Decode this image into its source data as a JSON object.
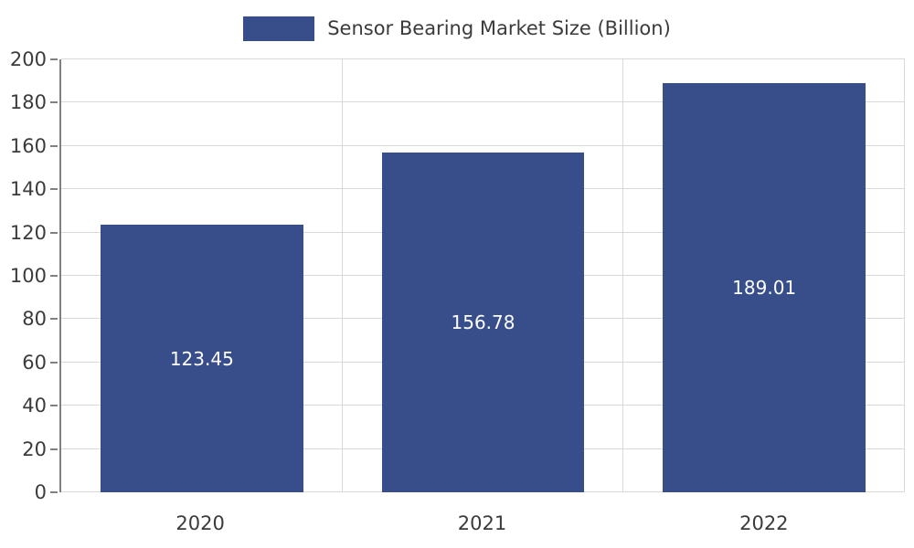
{
  "legend": {
    "label": "Sensor Bearing Market Size (Billion)"
  },
  "chart_data": {
    "type": "bar",
    "title": "",
    "series_name": "Sensor Bearing Market Size (Billion)",
    "categories": [
      "2020",
      "2021",
      "2022"
    ],
    "values": [
      123.45,
      156.78,
      189.01
    ],
    "value_labels": [
      "123.45",
      "156.78",
      "189.01"
    ],
    "xlabel": "",
    "ylabel": "",
    "ylim": [
      0,
      200
    ],
    "yticks": [
      0,
      20,
      40,
      60,
      80,
      100,
      120,
      140,
      160,
      180,
      200
    ],
    "grid": true,
    "legend_position": "top",
    "bar_color": "#374e8b",
    "value_label_color": "#ffffff",
    "gridline_color": "#d9d9d9",
    "axis_color": "#808080",
    "text_color": "#3b3b3b"
  }
}
